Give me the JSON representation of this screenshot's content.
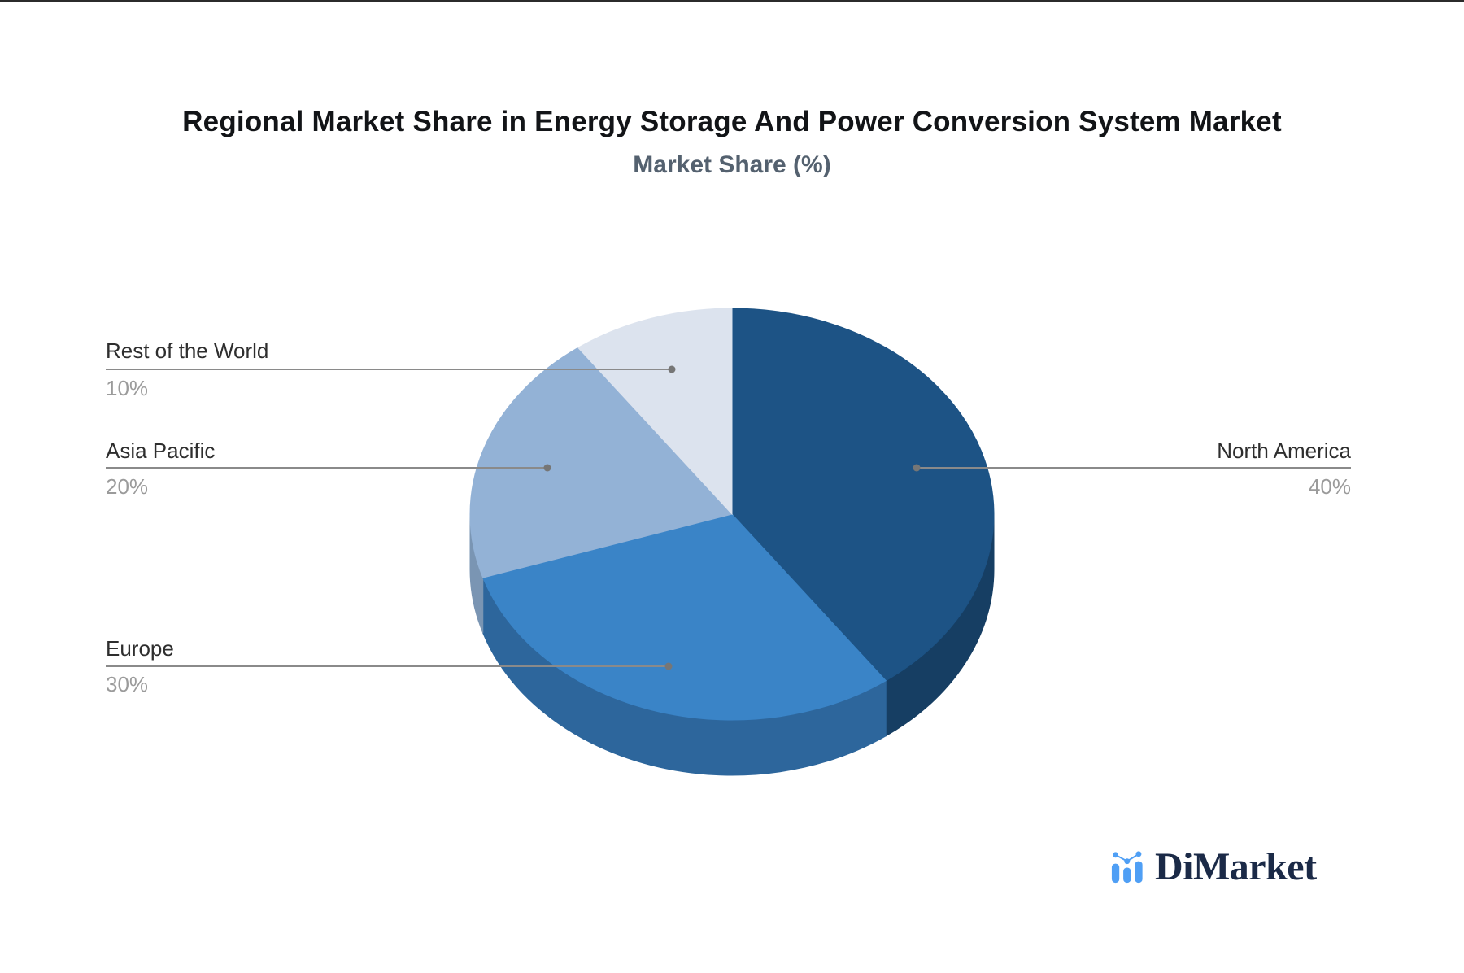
{
  "page": {
    "background": "#ffffff",
    "top_border_color": "#2b2b2b"
  },
  "header": {
    "title": "Regional Market Share in Energy Storage And Power Conversion System Market",
    "subtitle": "Market Share (%)"
  },
  "chart_data": {
    "type": "pie",
    "title": "Regional Market Share in Energy Storage And Power Conversion System Market",
    "subtitle": "Market Share (%)",
    "unit": "%",
    "start_angle": "12-oclock",
    "direction": "clockwise",
    "effect_3d": true,
    "legend_position": "callout-labels",
    "slices": [
      {
        "label": "North America",
        "value": 40,
        "value_text": "40%",
        "color": "#1d5385",
        "side_color": "#163e63"
      },
      {
        "label": "Europe",
        "value": 30,
        "value_text": "30%",
        "color": "#3a84c7",
        "side_color": "#2d669c"
      },
      {
        "label": "Asia Pacific",
        "value": 20,
        "value_text": "20%",
        "color": "#93b2d6",
        "side_color": "#7a95b3"
      },
      {
        "label": "Rest of the World",
        "value": 10,
        "value_text": "10%",
        "color": "#dce3ee",
        "side_color": "#b9c4d4"
      }
    ],
    "callout_line_color": "#8a8a8a",
    "callout_dot_color": "#767676",
    "label_color": "#2e2e2e",
    "value_color": "#9b9b9b"
  },
  "branding": {
    "logo_text": "DiMarket",
    "logo_icon": "bar-chart-trendline-icon",
    "logo_text_color": "#1b2a47",
    "logo_accent_color": "#4f9ff5"
  }
}
